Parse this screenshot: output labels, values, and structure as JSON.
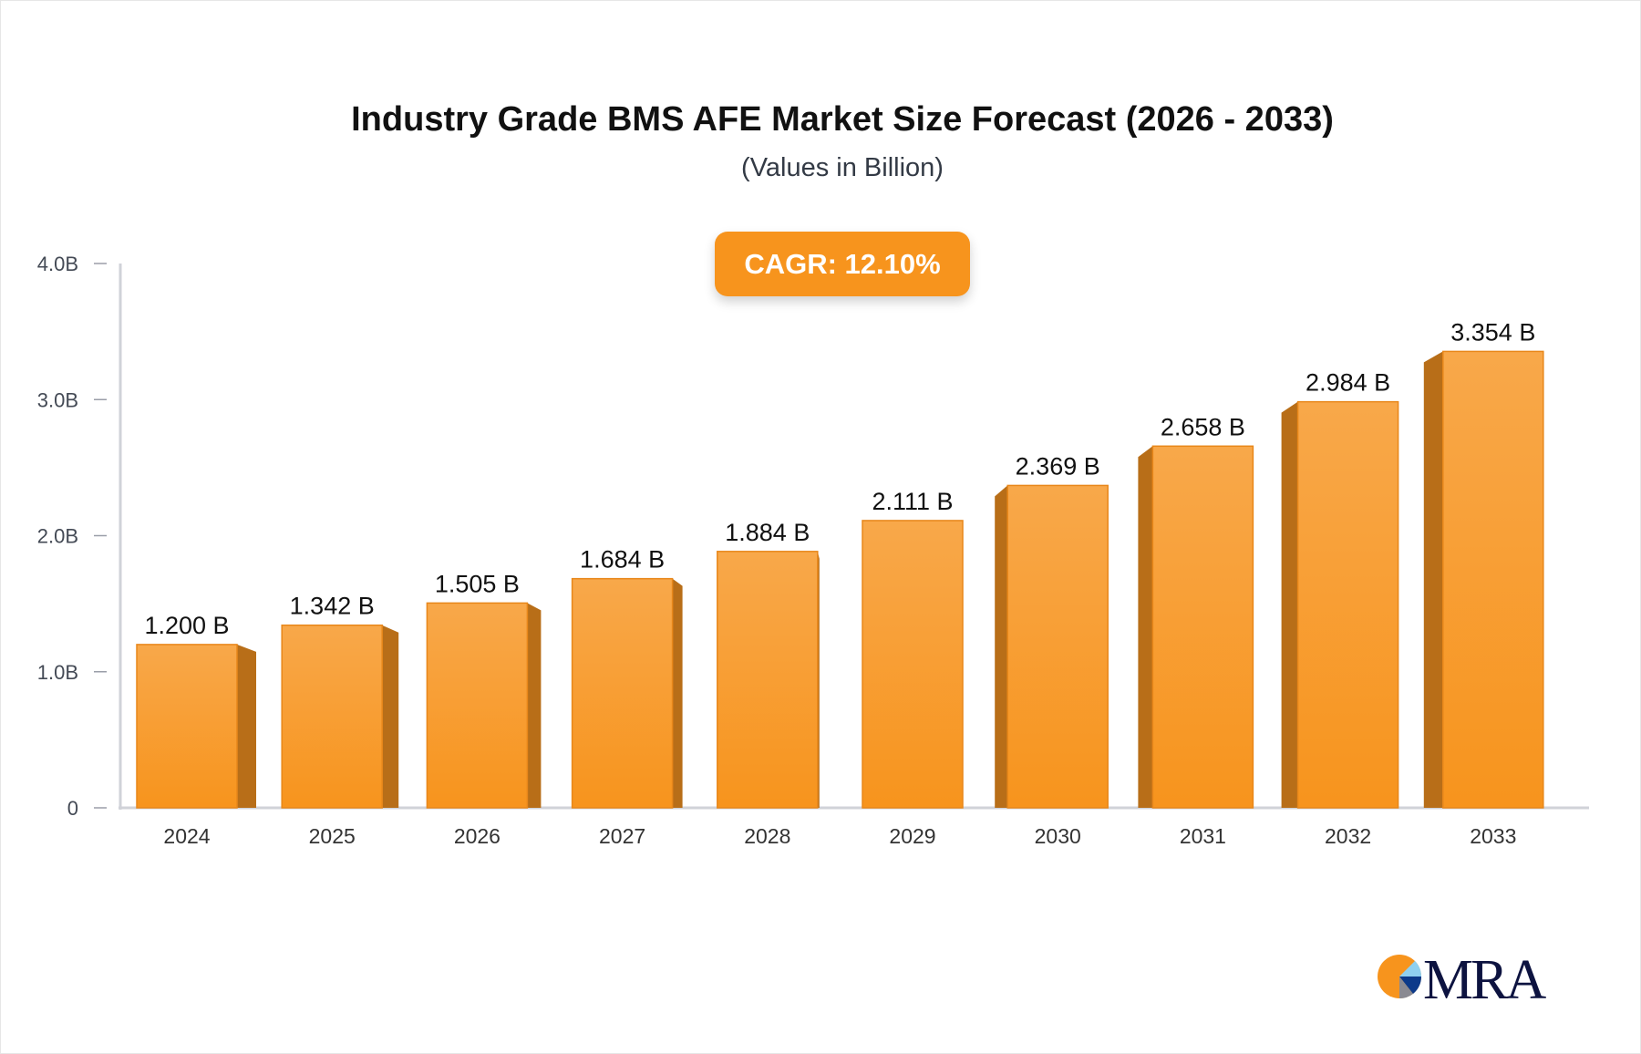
{
  "chart_data": {
    "type": "bar",
    "title": "Industry Grade BMS AFE Market Size Forecast (2026 - 2033)",
    "subtitle": "(Values in Billion)",
    "annotation": "CAGR: 12.10%",
    "categories": [
      "2024",
      "2025",
      "2026",
      "2027",
      "2028",
      "2029",
      "2030",
      "2031",
      "2032",
      "2033"
    ],
    "values": [
      1.2,
      1.342,
      1.505,
      1.684,
      1.884,
      2.111,
      2.369,
      2.658,
      2.984,
      3.354
    ],
    "data_labels": [
      "1.200 B",
      "1.342 B",
      "1.505 B",
      "1.684 B",
      "1.884 B",
      "2.111 B",
      "2.369 B",
      "2.658 B",
      "2.984 B",
      "3.354 B"
    ],
    "y_ticks": [
      "0",
      "1.0B",
      "2.0B",
      "3.0B",
      "4.0B"
    ],
    "ylim": [
      0,
      4
    ],
    "xlabel": "",
    "ylabel": "",
    "grid": false,
    "bar_style": "3d",
    "colors": {
      "bar_front": "#f7941d",
      "bar_top": "#f8a84a",
      "bar_side": "#b86e18",
      "axis": "#d0d2d8"
    }
  },
  "logo": {
    "text": "MRA"
  }
}
